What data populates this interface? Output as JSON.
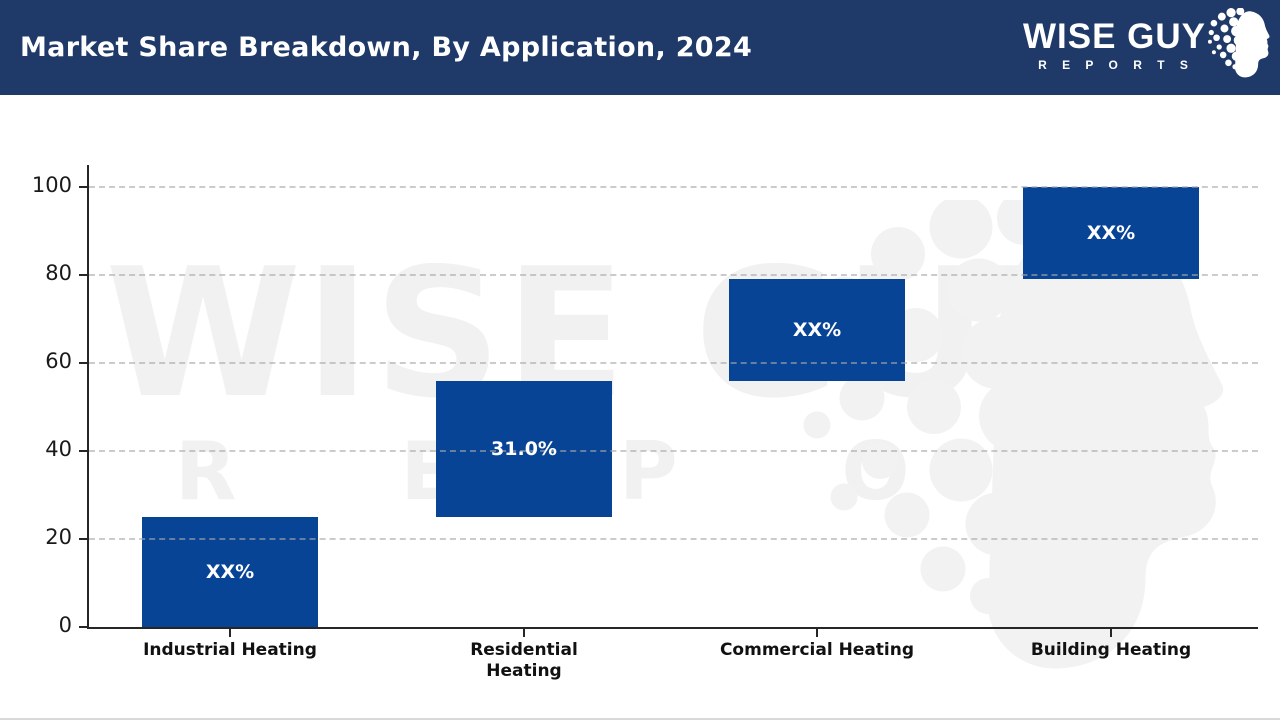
{
  "header": {
    "title": "Market Share Breakdown, By Application, 2024",
    "logo": {
      "line1": "WISE GUY",
      "line2": "R E P O R T S"
    }
  },
  "watermark": {
    "line1": "WISE GUY",
    "line2": "R E P O R T S"
  },
  "colors": {
    "header_bg": "#1f3a68",
    "bar": "#074496",
    "bar_label": "#ffffff",
    "axis": "#262626",
    "watermark": "#f1f1f2"
  },
  "chart_data": {
    "type": "bar",
    "subtype": "waterfall-floating-bars",
    "title": "Market Share Breakdown, By Application, 2024",
    "categories": [
      "Industrial Heating",
      "Residential\nHeating",
      "Commercial Heating",
      "Building Heating"
    ],
    "series": [
      {
        "name": "Market Share (%)",
        "segments": [
          {
            "category": "Industrial Heating",
            "start": 0,
            "end": 25,
            "value": 25,
            "label": "XX%"
          },
          {
            "category": "Residential Heating",
            "start": 25,
            "end": 56,
            "value": 31,
            "label": "31.0%"
          },
          {
            "category": "Commercial Heating",
            "start": 56,
            "end": 79,
            "value": 23,
            "label": "XX%"
          },
          {
            "category": "Building Heating",
            "start": 79,
            "end": 100,
            "value": 21,
            "label": "XX%"
          }
        ]
      }
    ],
    "ylim": [
      0,
      105
    ],
    "ytick_values": [
      0,
      20,
      40,
      60,
      80,
      100
    ],
    "xlabel": "",
    "ylabel": "",
    "grid": "horizontal-dashed",
    "legend_position": "none"
  }
}
